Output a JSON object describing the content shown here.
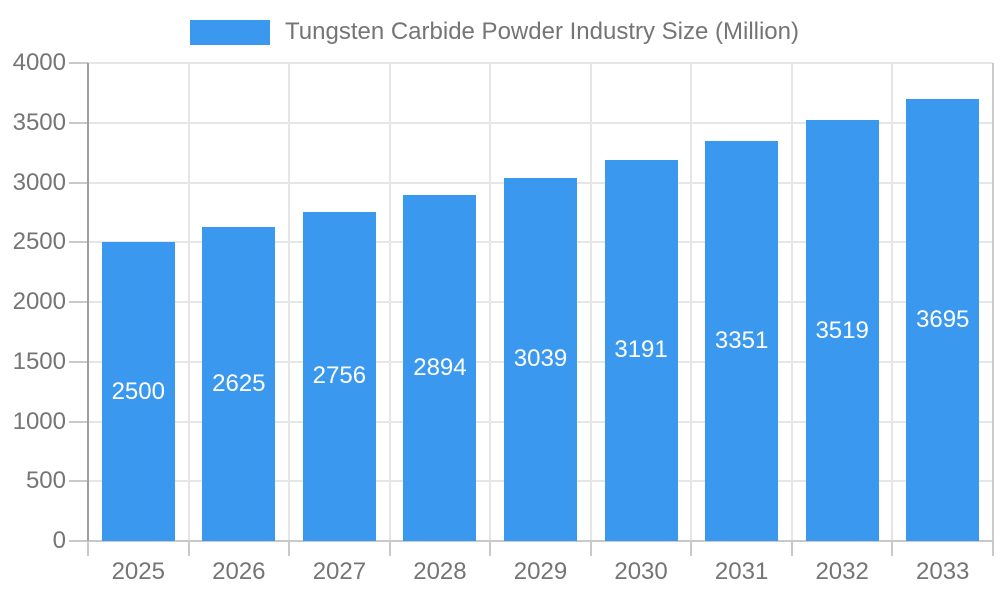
{
  "legend": {
    "label": "Tungsten Carbide Powder Industry Size (Million)"
  },
  "chart_data": {
    "type": "bar",
    "title": "Tungsten Carbide Powder Industry Size (Million)",
    "categories": [
      "2025",
      "2026",
      "2027",
      "2028",
      "2029",
      "2030",
      "2031",
      "2032",
      "2033"
    ],
    "values": [
      2500,
      2625,
      2756,
      2894,
      3039,
      3191,
      3351,
      3519,
      3695
    ],
    "series": [
      {
        "name": "Tungsten Carbide Powder Industry Size (Million)",
        "values": [
          2500,
          2625,
          2756,
          2894,
          3039,
          3191,
          3351,
          3519,
          3695
        ]
      }
    ],
    "xlabel": "",
    "ylabel": "",
    "ylim": [
      0,
      4000
    ],
    "ytick_step": 500,
    "yticks": [
      0,
      500,
      1000,
      1500,
      2000,
      2500,
      3000,
      3500,
      4000
    ],
    "grid": true,
    "legend_position": "top",
    "value_labels": "inside-center",
    "colors": {
      "bar": "#3a99ee",
      "value_label": "#ffffff",
      "axis_text": "#757575",
      "legend_text": "#757575",
      "gridline": "#e6e6e6",
      "axis_line": "#9e9e9e",
      "tick": "#c9c9c9",
      "plot_border": "#cccccc",
      "background": "#ffffff"
    }
  }
}
